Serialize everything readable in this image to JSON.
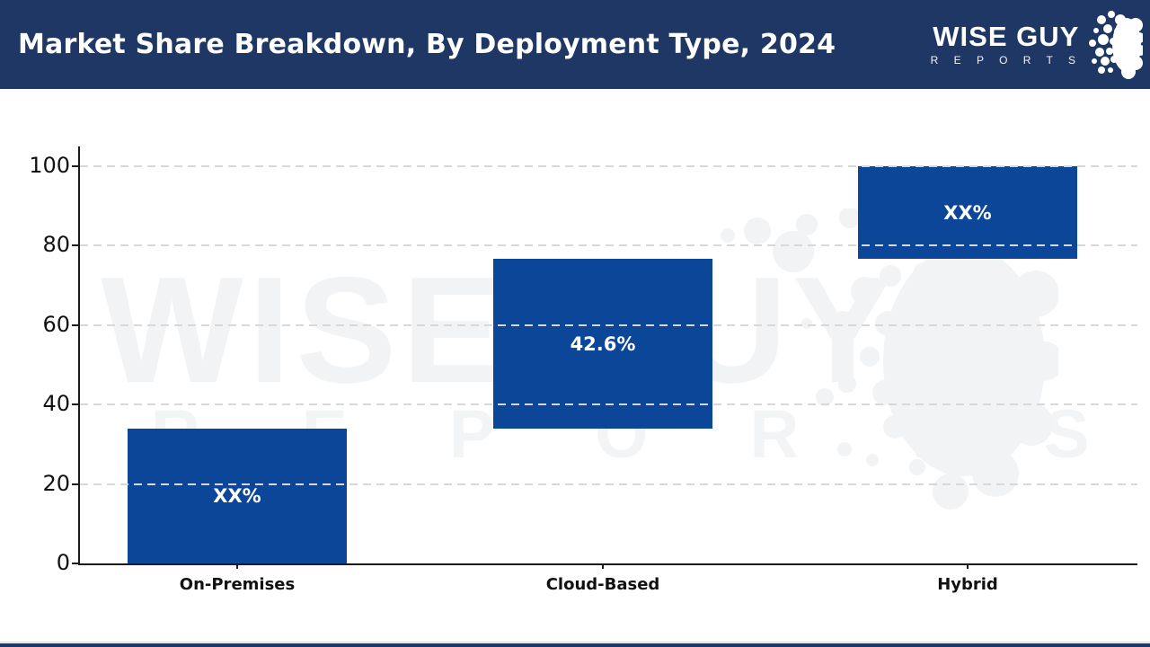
{
  "header": {
    "title": "Market Share Breakdown, By Deployment Type, 2024",
    "logo": {
      "name_line": "WISE GUY",
      "reports_line": "R E P O R T S"
    }
  },
  "watermark": {
    "name_line": "WISE GUY",
    "reports_line": "R E P O R T S"
  },
  "chart_data": {
    "type": "bar",
    "variant": "floating-waterfall",
    "title": "Market Share Breakdown, By Deployment Type, 2024",
    "categories": [
      "On-Premises",
      "Cloud-Based",
      "Hybrid"
    ],
    "segments": [
      {
        "category": "On-Premises",
        "start": 0,
        "end": 34,
        "value": 34,
        "label": "XX%"
      },
      {
        "category": "Cloud-Based",
        "start": 34,
        "end": 76.6,
        "value": 42.6,
        "label": "42.6%"
      },
      {
        "category": "Hybrid",
        "start": 76.6,
        "end": 100,
        "value": 23.4,
        "label": "XX%"
      }
    ],
    "bar_labels": [
      "XX%",
      "42.6%",
      "XX%"
    ],
    "xlabel": "",
    "ylabel": "",
    "ylim": [
      0,
      105
    ],
    "yticks": [
      0,
      20,
      40,
      60,
      80,
      100
    ],
    "grid": "horizontal-dashed",
    "legend": "none"
  },
  "colors": {
    "header_bg": "#1f3765",
    "footer_bg": "#1f3765",
    "title_text": "#ffffff",
    "bar_fill": "#0b4699",
    "bar_label_text": "#ffffff",
    "gridline": "#d8d8d8",
    "axis": "#1a1a1a",
    "tick_text": "#111111",
    "watermark": "#f2f3f5"
  }
}
